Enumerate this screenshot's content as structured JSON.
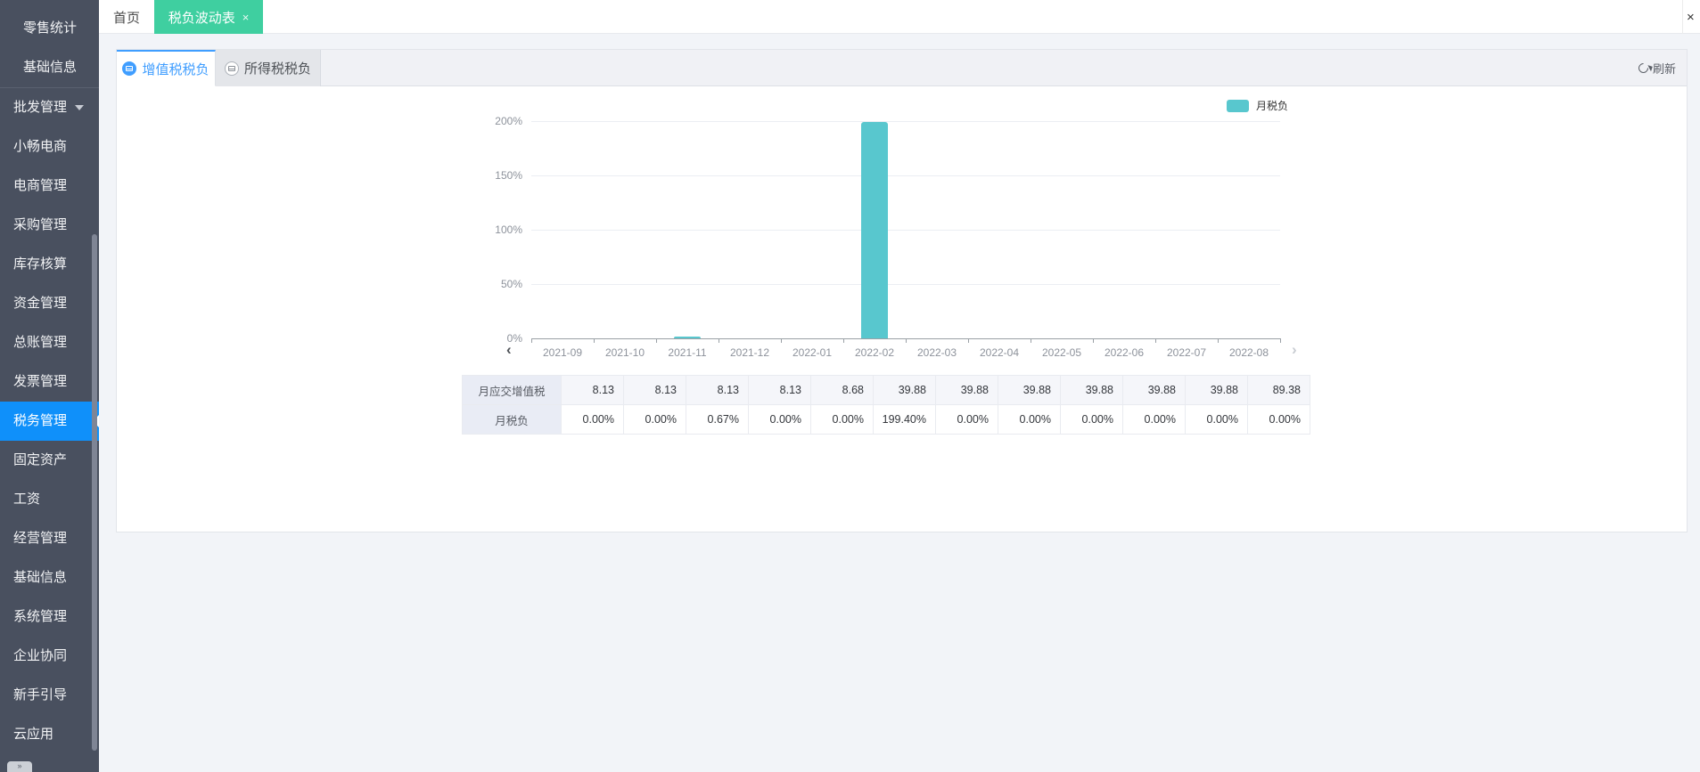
{
  "sidebar": {
    "items": [
      {
        "name": "retail-statistics",
        "label": "零售统计",
        "indent": true
      },
      {
        "name": "basic-info-top",
        "label": "基础信息",
        "indent": true
      },
      {
        "divider": true
      },
      {
        "name": "wholesale-management",
        "label": "批发管理",
        "caret": true
      },
      {
        "name": "xiaochang-ecommerce",
        "label": "小畅电商"
      },
      {
        "name": "ecommerce-management",
        "label": "电商管理"
      },
      {
        "name": "procurement-management",
        "label": "采购管理"
      },
      {
        "name": "inventory-accounting",
        "label": "库存核算"
      },
      {
        "name": "funds-management",
        "label": "资金管理"
      },
      {
        "name": "general-ledger",
        "label": "总账管理"
      },
      {
        "name": "invoice-management",
        "label": "发票管理"
      },
      {
        "name": "tax-management",
        "label": "税务管理",
        "active": true
      },
      {
        "name": "fixed-assets",
        "label": "固定资产"
      },
      {
        "name": "payroll",
        "label": "工资"
      },
      {
        "name": "operations-management",
        "label": "经营管理"
      },
      {
        "name": "basic-info",
        "label": "基础信息"
      },
      {
        "name": "system-management",
        "label": "系统管理"
      },
      {
        "name": "enterprise-collaboration",
        "label": "企业协同"
      },
      {
        "name": "beginner-guide",
        "label": "新手引导"
      },
      {
        "name": "cloud-apps",
        "label": "云应用"
      }
    ],
    "collapse_glyph": "»"
  },
  "tabbar": {
    "home_label": "首页",
    "active_tab_label": "税负波动表",
    "tab_close_glyph": "×",
    "bar_close_glyph": "×"
  },
  "panel": {
    "tab_vat_label": "增值税税负",
    "tab_income_label": "所得税税负",
    "refresh_label": "刷新"
  },
  "chart_data": {
    "type": "bar",
    "title": "",
    "categories": [
      "2021-09",
      "2021-10",
      "2021-11",
      "2021-12",
      "2022-01",
      "2022-02",
      "2022-03",
      "2022-04",
      "2022-05",
      "2022-06",
      "2022-07",
      "2022-08"
    ],
    "series": [
      {
        "name": "月税负",
        "values": [
          0.0,
          0.0,
          0.67,
          0.0,
          0.0,
          199.4,
          0.0,
          0.0,
          0.0,
          0.0,
          0.0,
          0.0
        ]
      }
    ],
    "y_ticks": [
      "0%",
      "50%",
      "100%",
      "150%",
      "200%"
    ],
    "ylim": [
      0,
      200
    ],
    "grid": true,
    "legend_position": "top-right",
    "bar_color": "#58c7ce",
    "nav_prev_glyph": "‹",
    "nav_next_glyph": "›"
  },
  "table": {
    "rows": [
      {
        "header": "月应交增值税",
        "values": [
          "8.13",
          "8.13",
          "8.13",
          "8.13",
          "8.68",
          "39.88",
          "39.88",
          "39.88",
          "39.88",
          "39.88",
          "39.88",
          "89.38"
        ]
      },
      {
        "header": "月税负",
        "values": [
          "0.00%",
          "0.00%",
          "0.67%",
          "0.00%",
          "0.00%",
          "199.40%",
          "0.00%",
          "0.00%",
          "0.00%",
          "0.00%",
          "0.00%",
          "0.00%"
        ]
      }
    ]
  },
  "colors": {
    "sidebar_bg": "#49505f",
    "sidebar_active": "#0f90fa",
    "tab_green": "#3fcfa0",
    "accent_blue": "#409eff",
    "bar_teal": "#58c7ce",
    "page_bg": "#f2f4f8"
  }
}
